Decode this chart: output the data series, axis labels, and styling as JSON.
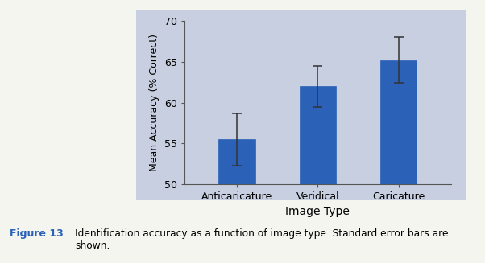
{
  "categories": [
    "Anticaricature",
    "Veridical",
    "Caricature"
  ],
  "values": [
    55.5,
    62.0,
    65.2
  ],
  "errors": [
    3.2,
    2.5,
    2.8
  ],
  "bar_color": "#2B62B8",
  "error_color": "#333333",
  "plot_bg_color": "#c8cfe0",
  "fig_bg_color": "#f5f5f0",
  "ylabel": "Mean Accuracy (% Correct)",
  "xlabel": "Image Type",
  "ylim": [
    50,
    70
  ],
  "yticks": [
    50,
    55,
    60,
    65,
    70
  ],
  "bar_width": 0.45,
  "caption_bold": "Figure 13",
  "caption_text": "Identification accuracy as a function of image type. Standard error bars are\nshown.",
  "caption_color": "#2B62B8",
  "tick_fontsize": 9,
  "label_fontsize": 10,
  "ylabel_fontsize": 9
}
